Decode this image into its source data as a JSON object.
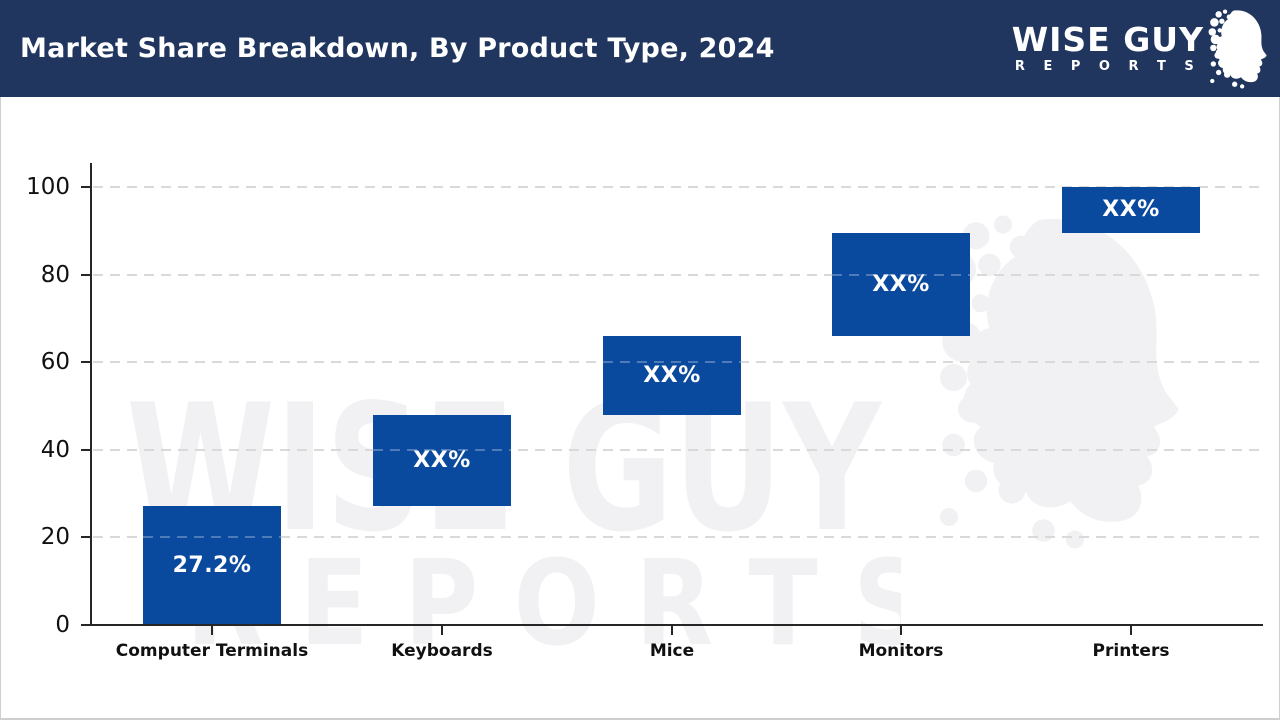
{
  "header": {
    "title": "Market Share Breakdown, By Product Type, 2024",
    "logo": {
      "line1": "WISE GUY",
      "line2": "R E P O R T S"
    }
  },
  "watermark": {
    "line1": "WISE GUY",
    "line2": "R E P O R T S"
  },
  "colors": {
    "header_bg": "#21365f",
    "bar": "#0a4a9e",
    "grid": "#d9d9d9",
    "axis": "#262626",
    "watermark": "#f1f1f3",
    "bar_label": "#ffffff"
  },
  "chart_data": {
    "type": "bar",
    "subtype": "waterfall",
    "title": "Market Share Breakdown, By Product Type, 2024",
    "categories": [
      "Computer Terminals",
      "Keyboards",
      "Mice",
      "Monitors",
      "Printers"
    ],
    "bars": [
      {
        "category": "Computer Terminals",
        "start": 0,
        "end": 27.2,
        "label": "27.2%"
      },
      {
        "category": "Keyboards",
        "start": 27.2,
        "end": 48,
        "label": "XX%"
      },
      {
        "category": "Mice",
        "start": 48,
        "end": 66,
        "label": "XX%"
      },
      {
        "category": "Monitors",
        "start": 66,
        "end": 89.5,
        "label": "XX%"
      },
      {
        "category": "Printers",
        "start": 89.5,
        "end": 100,
        "label": "XX%"
      }
    ],
    "yticks": [
      0,
      20,
      40,
      60,
      80,
      100
    ],
    "ylim": [
      0,
      105
    ],
    "grid": "horizontal-dashed",
    "legend": "none"
  }
}
